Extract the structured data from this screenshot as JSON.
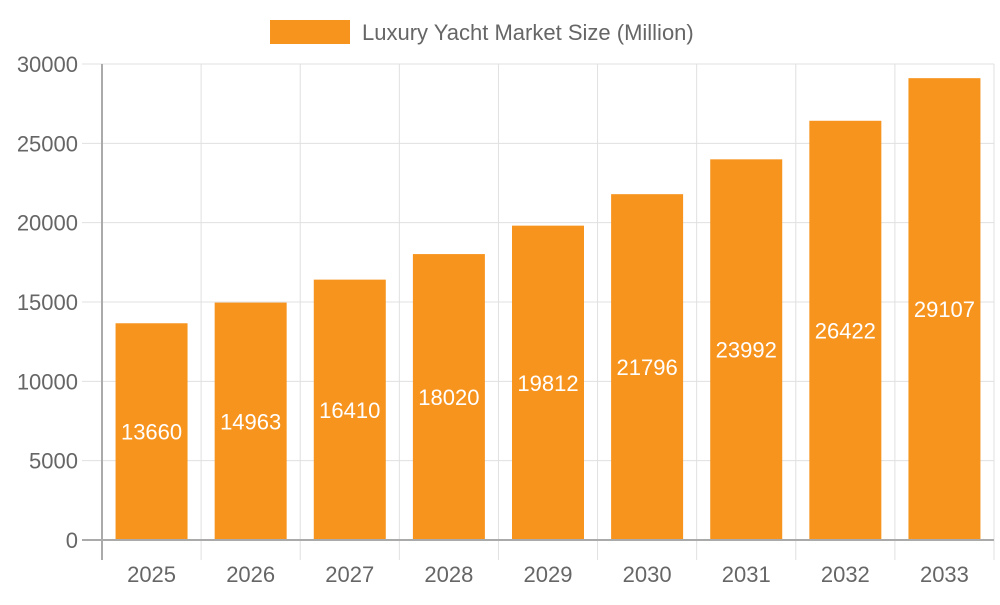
{
  "chart_data": {
    "type": "bar",
    "categories": [
      "2025",
      "2026",
      "2027",
      "2028",
      "2029",
      "2030",
      "2031",
      "2032",
      "2033"
    ],
    "series": [
      {
        "name": "Luxury Yacht Market Size (Million)",
        "values": [
          13660,
          14963,
          16410,
          18020,
          19812,
          21796,
          23992,
          26422,
          29107
        ]
      }
    ],
    "ylim": [
      0,
      30000
    ],
    "yticks": [
      0,
      5000,
      10000,
      15000,
      20000,
      25000,
      30000
    ],
    "grid": true,
    "legend": "top",
    "data_labels": true,
    "colors": {
      "bar": "#F7941E",
      "label": "#FFFFFF",
      "text": "#666666",
      "grid": "#E0E0E0",
      "axis": "#AAAAAA"
    }
  }
}
